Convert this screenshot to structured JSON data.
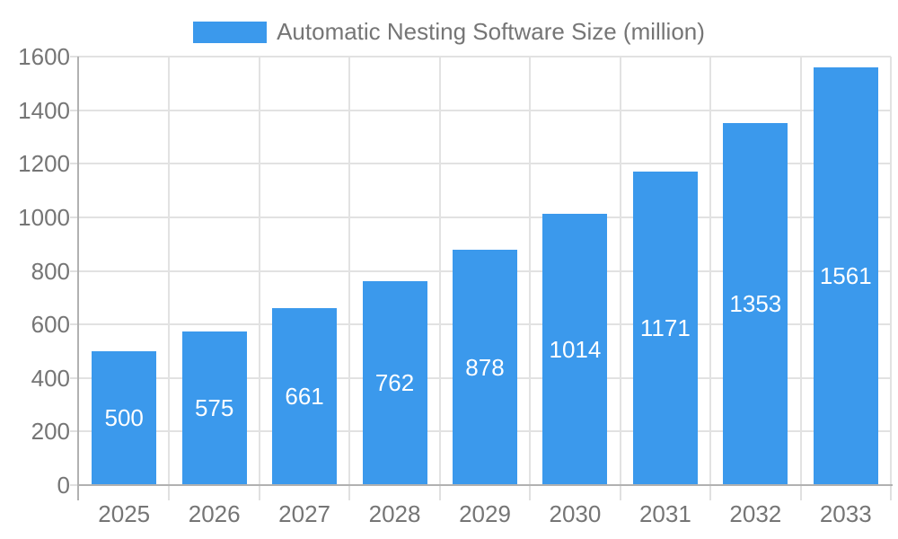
{
  "chart_data": {
    "type": "bar",
    "title": "Automatic Nesting Software Size (million)",
    "categories": [
      "2025",
      "2026",
      "2027",
      "2028",
      "2029",
      "2030",
      "2031",
      "2032",
      "2033"
    ],
    "values": [
      500,
      575,
      661,
      762,
      878,
      1014,
      1171,
      1353,
      1561
    ],
    "value_labels": [
      "500",
      "575",
      "661",
      "762",
      "878",
      "1014",
      "1171",
      "1353",
      "1561"
    ],
    "yticks": [
      "0",
      "200",
      "400",
      "600",
      "800",
      "1000",
      "1200",
      "1400",
      "1600"
    ],
    "ylim": [
      0,
      1600
    ],
    "ytick_step": 200,
    "xlabel": "",
    "ylabel": "",
    "grid": true,
    "legend_position": "top",
    "series": [
      {
        "name": "Automatic Nesting Software Size (million)",
        "values": [
          500,
          575,
          661,
          762,
          878,
          1014,
          1171,
          1353,
          1561
        ]
      }
    ]
  },
  "legend": {
    "label": "Automatic Nesting Software Size (million)",
    "swatch_color": "#3B99EC"
  },
  "colors": {
    "bar": "#3B99EC",
    "bar_value_text": "#ffffff",
    "axis_text": "#757575",
    "gridline": "#e2e2e2",
    "tick": "#e0e0e0",
    "axis_line": "#b1b1b1",
    "background": "#ffffff"
  }
}
